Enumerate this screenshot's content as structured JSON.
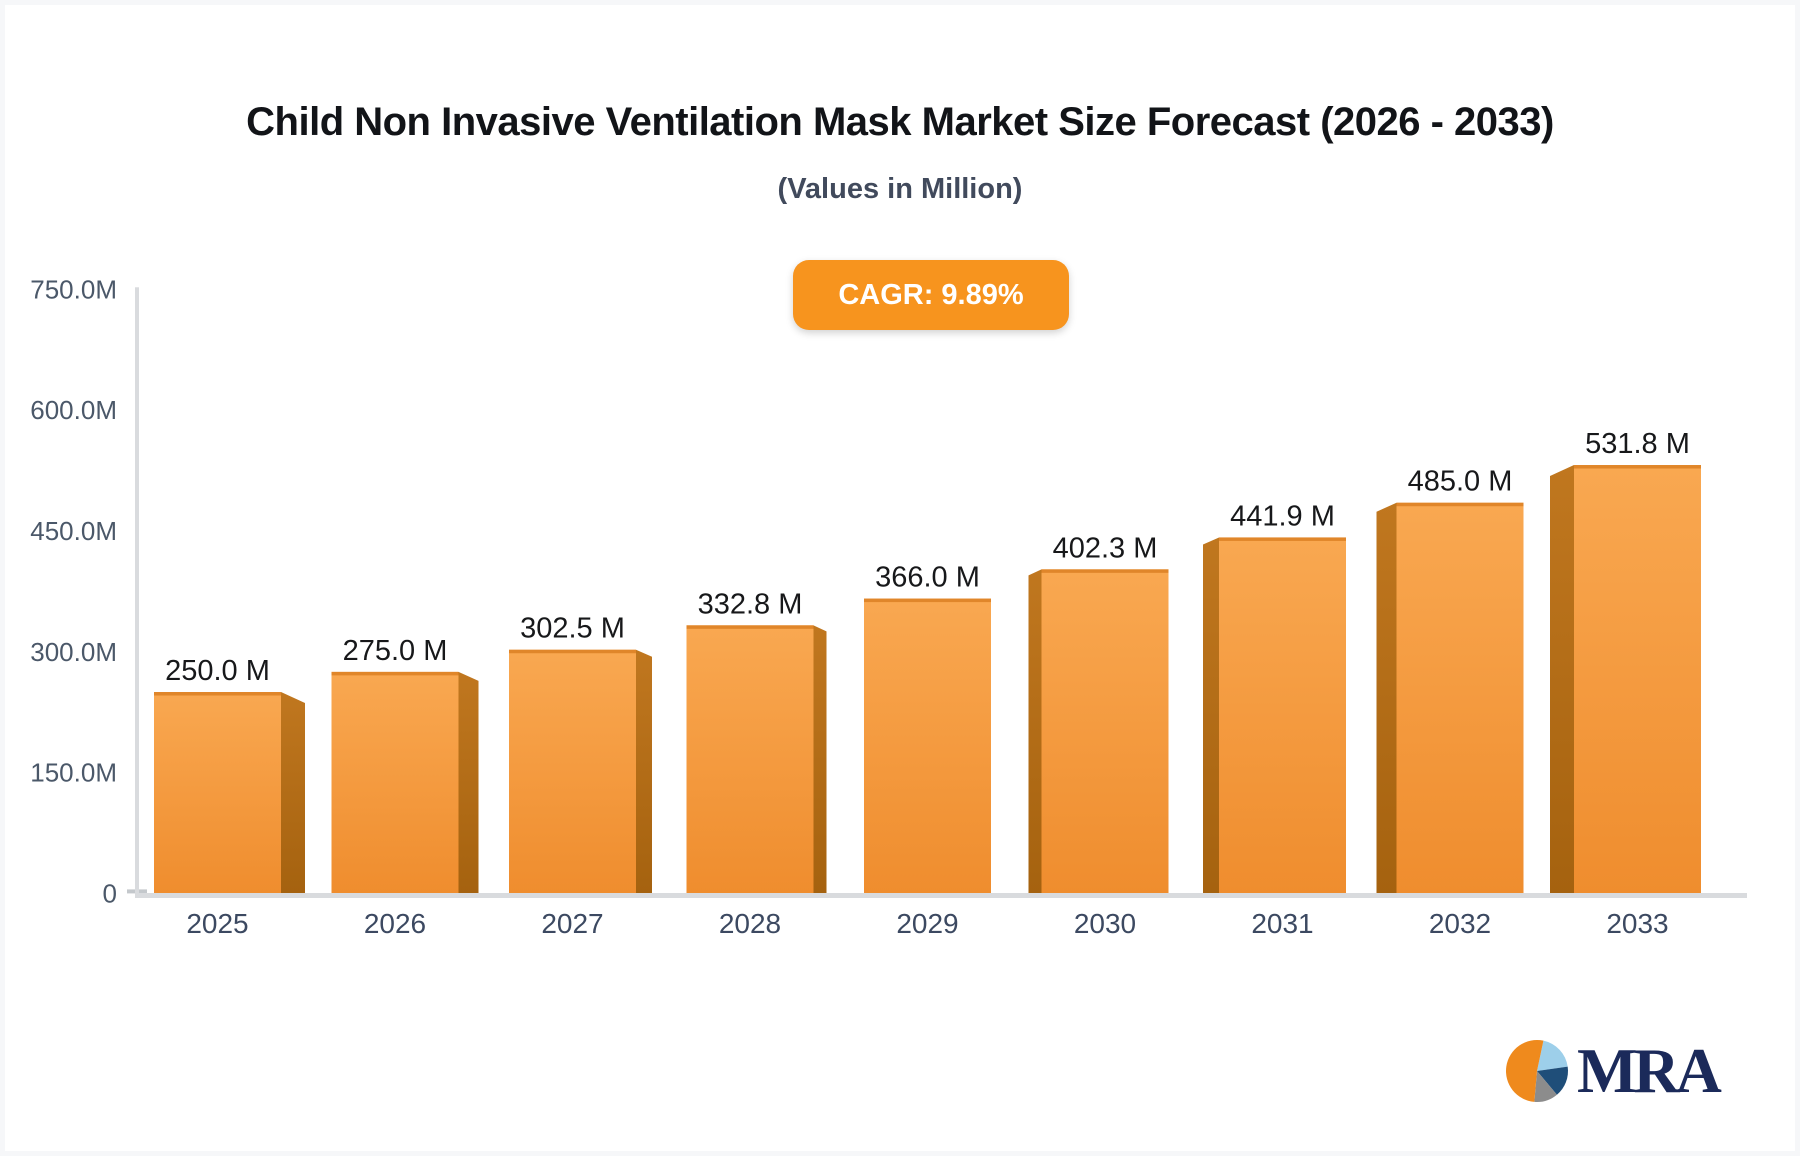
{
  "chart_data": {
    "type": "bar",
    "title": "Child Non Invasive Ventilation Mask Market Size Forecast (2026 - 2033)",
    "subtitle": "(Values in Million)",
    "categories": [
      "2025",
      "2026",
      "2027",
      "2028",
      "2029",
      "2030",
      "2031",
      "2032",
      "2033"
    ],
    "values": [
      250.0,
      275.0,
      302.5,
      332.8,
      366.0,
      402.3,
      441.9,
      485.0,
      531.8
    ],
    "bar_labels": [
      "250.0 M",
      "275.0 M",
      "302.5 M",
      "332.8 M",
      "366.0 M",
      "402.3 M",
      "441.9 M",
      "485.0 M",
      "531.8 M"
    ],
    "y_ticks": [
      {
        "value": 0,
        "label": "0"
      },
      {
        "value": 150,
        "label": "150.0M"
      },
      {
        "value": 300,
        "label": "300.0M"
      },
      {
        "value": 450,
        "label": "450.0M"
      },
      {
        "value": 600,
        "label": "600.0M"
      },
      {
        "value": 750,
        "label": "750.0M"
      }
    ],
    "ylim": [
      0,
      750
    ],
    "xlabel": "",
    "ylabel": "",
    "grid": false,
    "legend": false,
    "unit": "Million",
    "colors": {
      "bar_face_top": "#F9A851",
      "bar_face_bottom": "#EF8D2E",
      "bar_top_edge": "#E0862A",
      "bar_side_top": "#C0771F",
      "bar_side_bottom": "#A5620F",
      "axis_line": "#D9DBDE",
      "tick_text": "#4B5869",
      "category_text": "#3C4961",
      "value_text": "#17181A"
    }
  },
  "badge": {
    "label": "CAGR: 9.89%",
    "bg_color": "#F7941E",
    "text_color": "#FFFFFF"
  },
  "logo": {
    "text": "MRA",
    "text_color": "#1B2A5A",
    "pie_colors": {
      "orange": "#EF8A1D",
      "light_blue": "#9DCFEA",
      "navy": "#1F4E79",
      "gray": "#8C8C8C"
    }
  }
}
